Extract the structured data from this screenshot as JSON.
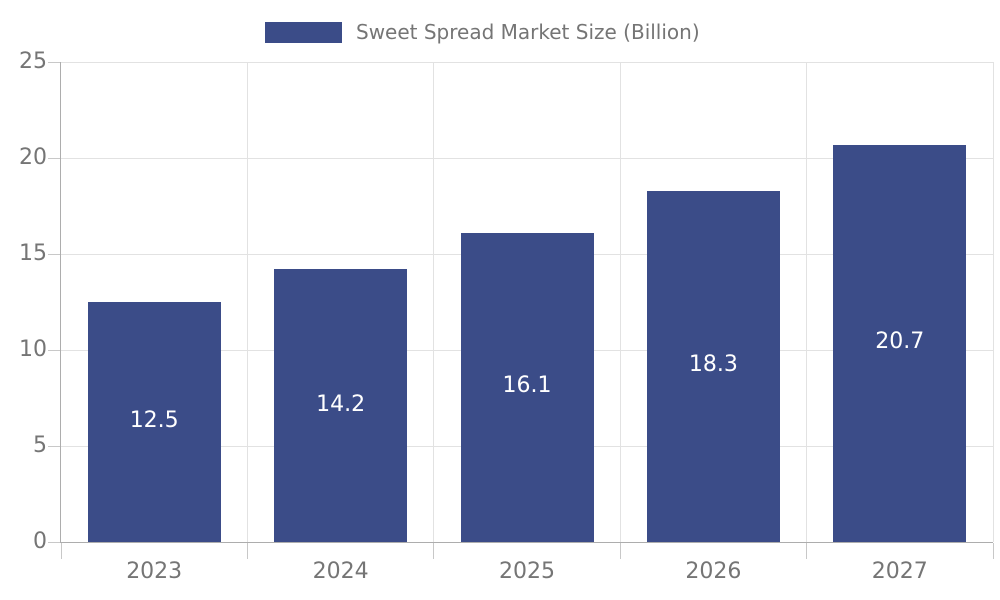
{
  "legend": {
    "label": "Sweet Spread Market Size (Billion)"
  },
  "chart_data": {
    "type": "bar",
    "title": "Sweet Spread Market Size (Billion)",
    "series_name": "Sweet Spread Market Size (Billion)",
    "categories": [
      "2023",
      "2024",
      "2025",
      "2026",
      "2027"
    ],
    "values": [
      12.5,
      14.2,
      16.1,
      18.3,
      20.7
    ],
    "value_labels": [
      "12.5",
      "14.2",
      "16.1",
      "18.3",
      "20.7"
    ],
    "xlabel": "",
    "ylabel": "",
    "ylim": [
      0,
      25
    ],
    "yticks": [
      0,
      5,
      10,
      15,
      20,
      25
    ],
    "grid": true,
    "legend_position": "top",
    "colors": {
      "bar": "#3B4C88",
      "value_label": "#FFFFFF",
      "axis_text": "#757575",
      "gridline": "#E2E2E2",
      "axis_line": "#ADADAD",
      "tick": "#C8C8C8",
      "background": "#FFFFFF"
    }
  }
}
